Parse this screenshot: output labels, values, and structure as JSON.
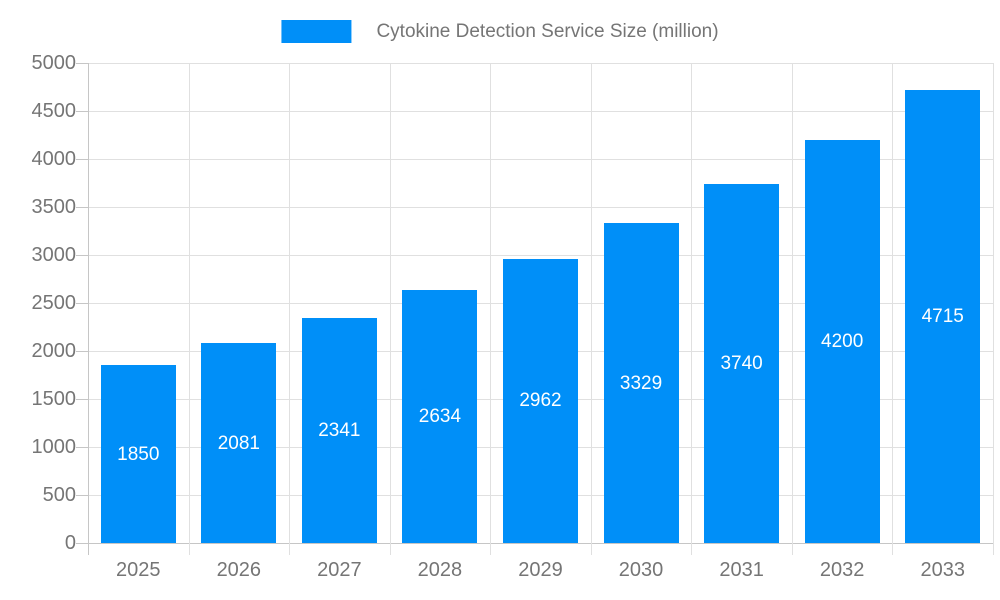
{
  "legend": {
    "label": "Cytokine Detection Service Size (million)"
  },
  "colors": {
    "bar": "#008ff8",
    "grid": "#e0e0e0",
    "axis": "#c6c6c6",
    "text": "#757575",
    "value_label": "#ffffff",
    "background": "#ffffff"
  },
  "chart_data": {
    "type": "bar",
    "title": "Cytokine Detection Service Size (million)",
    "categories": [
      "2025",
      "2026",
      "2027",
      "2028",
      "2029",
      "2030",
      "2031",
      "2032",
      "2033"
    ],
    "values": [
      1850,
      2081,
      2341,
      2634,
      2962,
      3329,
      3740,
      4200,
      4715
    ],
    "series": [
      {
        "name": "Cytokine Detection Service Size (million)",
        "values": [
          1850,
          2081,
          2341,
          2634,
          2962,
          3329,
          3740,
          4200,
          4715
        ]
      }
    ],
    "xlabel": "",
    "ylabel": "",
    "ylim": [
      0,
      5000
    ],
    "ytick_step": 500,
    "yticks": [
      0,
      500,
      1000,
      1500,
      2000,
      2500,
      3000,
      3500,
      4000,
      4500,
      5000
    ],
    "grid": true,
    "legend_position": "top",
    "value_labels": "inside-center"
  }
}
